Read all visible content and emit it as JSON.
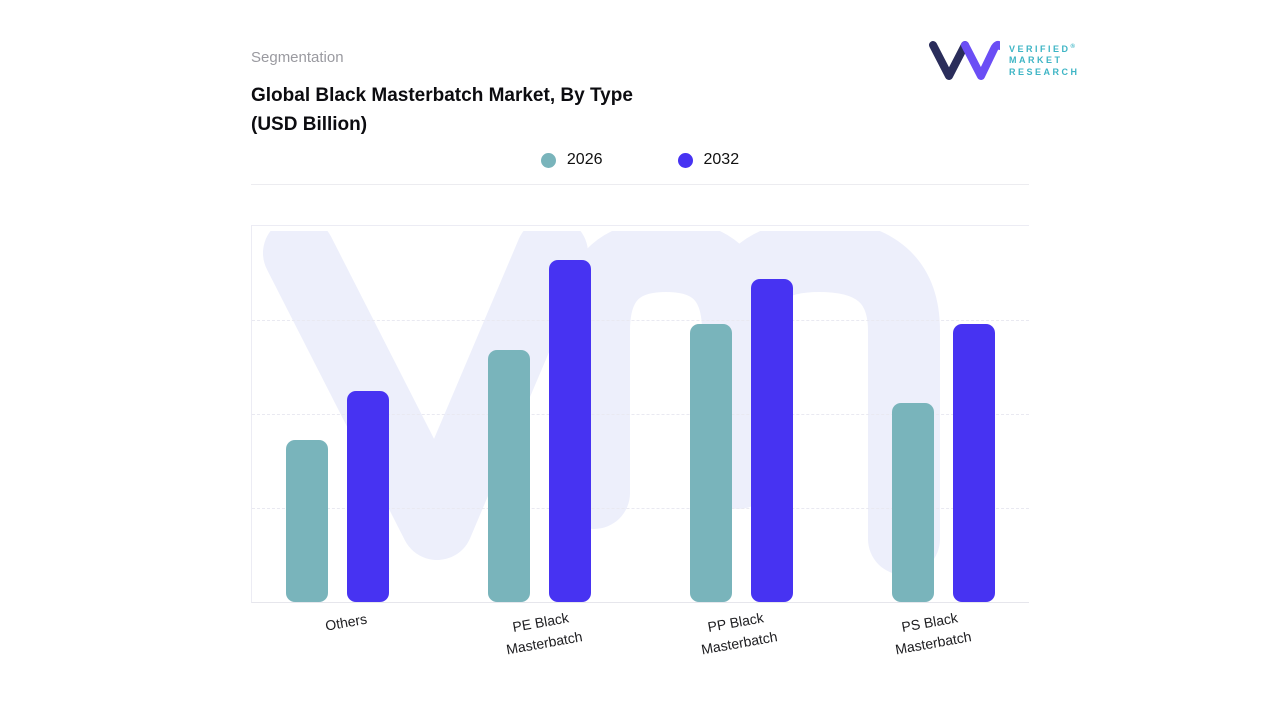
{
  "header": {
    "eyebrow": "Segmentation",
    "title_line1": "Global Black Masterbatch Market, By Type",
    "title_line2": "(USD Billion)"
  },
  "logo": {
    "line1": "VERIFIED",
    "line2": "MARKET",
    "line3": "RESEARCH",
    "registered": "®"
  },
  "legend": [
    {
      "label": "2026",
      "color": "#79b4bb"
    },
    {
      "label": "2032",
      "color": "#4733f2"
    }
  ],
  "chart_data": {
    "type": "bar",
    "title": "Global Black Masterbatch Market, By Type (USD Billion)",
    "categories": [
      "Others",
      "PE Black\nMasterbatch",
      "PP Black\nMasterbatch",
      "PS Black\nMasterbatch"
    ],
    "series": [
      {
        "name": "2026",
        "color": "#79b4bb",
        "values": [
          43,
          67,
          74,
          53
        ]
      },
      {
        "name": "2032",
        "color": "#4733f2",
        "values": [
          56,
          91,
          86,
          74
        ]
      }
    ],
    "xlabel": "",
    "ylabel": "",
    "ylim": [
      0,
      100
    ],
    "grid": "dashed horizontal",
    "legend_position": "top-center",
    "note": "No numeric axis labels are shown in the figure; values are estimated bar heights as percent of the plot height."
  }
}
